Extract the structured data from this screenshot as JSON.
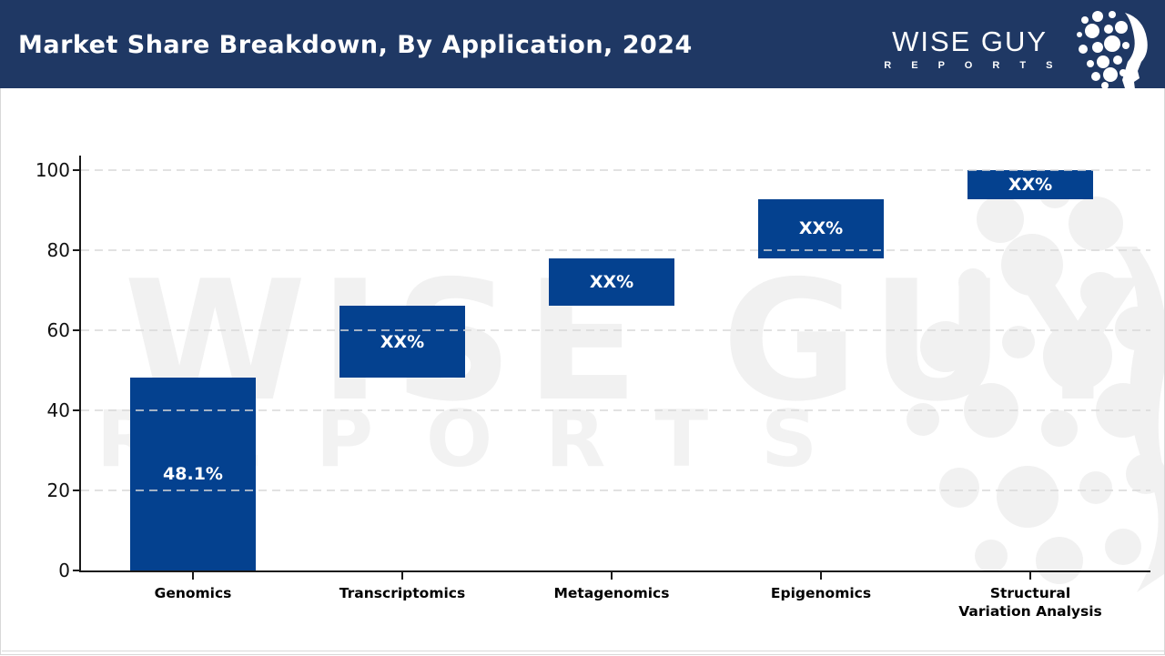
{
  "header": {
    "title": "Market Share Breakdown, By Application, 2024",
    "logo": {
      "name": "WISE GUY",
      "sub": "R E P O R T S"
    }
  },
  "watermark": {
    "line1": "WISE GUY",
    "line2": "REPORTS"
  },
  "chart_data": {
    "type": "bar",
    "subtype": "waterfall",
    "title": "Market Share Breakdown, By Application, 2024",
    "categories": [
      "Genomics",
      "Transcriptomics",
      "Metagenomics",
      "Epigenomics",
      "Structural Variation Analysis"
    ],
    "tick_labels": [
      [
        "Genomics"
      ],
      [
        "Transcriptomics"
      ],
      [
        "Metagenomics"
      ],
      [
        "Epigenomics"
      ],
      [
        "Structural",
        "Variation Analysis"
      ]
    ],
    "segments": [
      {
        "category": "Genomics",
        "start": 0,
        "end": 48.1,
        "label": "48.1%"
      },
      {
        "category": "Transcriptomics",
        "start": 48.1,
        "end": 66.2,
        "label": "XX%"
      },
      {
        "category": "Metagenomics",
        "start": 66.2,
        "end": 78.0,
        "label": "XX%"
      },
      {
        "category": "Epigenomics",
        "start": 78.0,
        "end": 92.7,
        "label": "XX%"
      },
      {
        "category": "Structural Variation Analysis",
        "start": 92.7,
        "end": 100,
        "label": "XX%"
      }
    ],
    "ylim": [
      0,
      100
    ],
    "yticks": [
      0,
      20,
      40,
      60,
      80,
      100
    ],
    "grid": "dashed-horizontal",
    "legend": "none",
    "bar_color": "#04418F",
    "bar_label_color": "#FFFFFF"
  },
  "colors": {
    "header_bg": "#1F3864",
    "bar": "#04418F",
    "grid": "#D9D9D9",
    "axis": "#1A1A1A",
    "tick_text": "#111111",
    "watermark": "#F1F1F1"
  }
}
